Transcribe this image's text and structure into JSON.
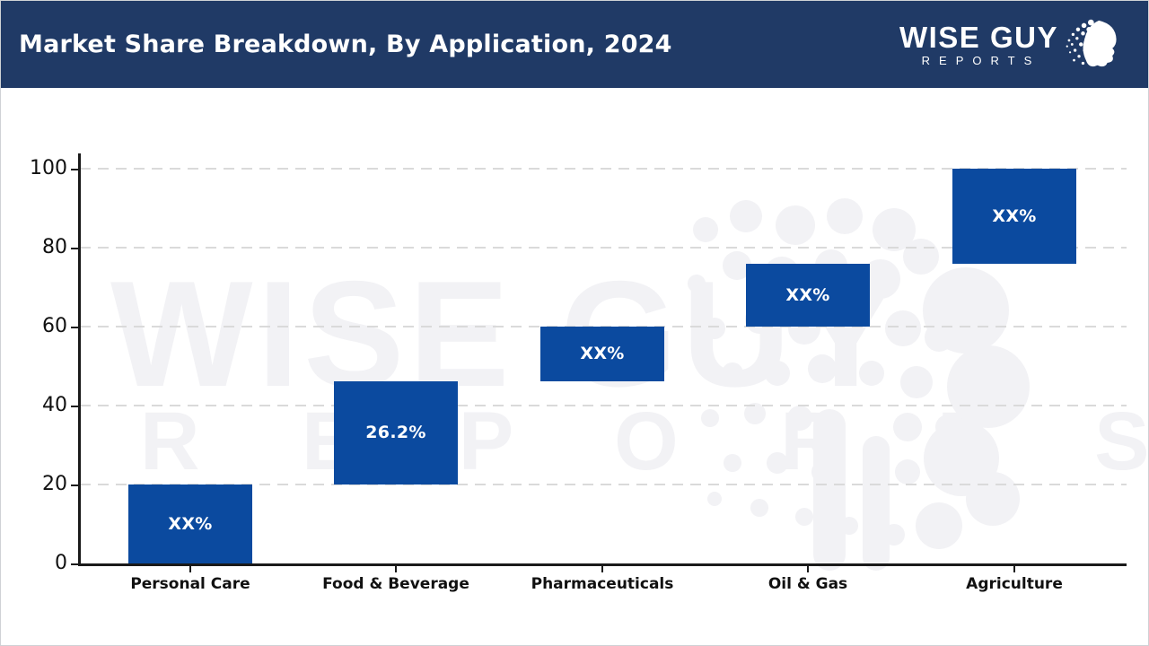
{
  "header": {
    "title": "Market Share Breakdown, By Application, 2024",
    "logo": {
      "line1": "WISE GUY",
      "line2": "REPORTS"
    }
  },
  "watermark": {
    "line1": "WISE GUY",
    "line2": "R E P O R T S"
  },
  "colors": {
    "header_bg": "#203A66",
    "bar": "#0B4A9F",
    "grid": "#DADADA",
    "axis": "#1A1A1A",
    "watermark": "#F2F2F5",
    "title_text": "#FFFFFF",
    "bar_label_text": "#FFFFFF"
  },
  "chart_data": {
    "type": "bar",
    "subtype": "waterfall",
    "title": "Market Share Breakdown, By Application, 2024",
    "categories": [
      "Personal Care",
      "Food & Beverage",
      "Pharmaceuticals",
      "Oil & Gas",
      "Agriculture"
    ],
    "bars": [
      {
        "category": "Personal Care",
        "start": 0,
        "end": 20,
        "value_label": "XX%"
      },
      {
        "category": "Food & Beverage",
        "start": 20,
        "end": 46.2,
        "value_label": "26.2%",
        "value": 26.2
      },
      {
        "category": "Pharmaceuticals",
        "start": 46.2,
        "end": 60,
        "value_label": "XX%"
      },
      {
        "category": "Oil & Gas",
        "start": 60,
        "end": 76,
        "value_label": "XX%"
      },
      {
        "category": "Agriculture",
        "start": 76,
        "end": 100,
        "value_label": "XX%"
      }
    ],
    "xlabel": "",
    "ylabel": "",
    "ylim": [
      0,
      100
    ],
    "yticks": [
      0,
      20,
      40,
      60,
      80,
      100
    ],
    "grid": {
      "horizontal": true,
      "style": "dashed"
    },
    "legend": null,
    "bar_color": "#0B4A9F"
  }
}
